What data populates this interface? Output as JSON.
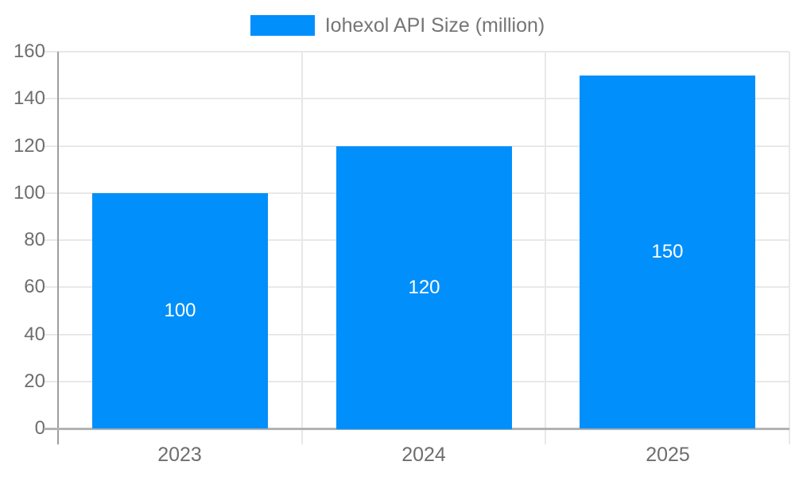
{
  "legend": {
    "label": "Iohexol API Size (million)"
  },
  "colors": {
    "bar": "#008FFB",
    "bar_label": "#FFFFFF",
    "legend_text": "#757575",
    "axis_label": "#6E6E6E",
    "grid": "#E8E8E8",
    "y_axis_line": "#9E9E9E",
    "x_axis_line": "#B3B3B3",
    "background": "#FFFFFF"
  },
  "chart_data": {
    "type": "bar",
    "title": "",
    "xlabel": "",
    "ylabel": "",
    "categories": [
      "2023",
      "2024",
      "2025"
    ],
    "series": [
      {
        "name": "Iohexol API Size (million)",
        "values": [
          100,
          120,
          150
        ],
        "color": "#008FFB"
      }
    ],
    "data_labels": [
      "100",
      "120",
      "150"
    ],
    "data_label_position": "center-inside-bar",
    "ylim": [
      0,
      160
    ],
    "y_ticks": [
      0,
      20,
      40,
      60,
      80,
      100,
      120,
      140,
      160
    ],
    "grid": "horizontal gridlines at every y tick, vertical gridlines at category boundaries",
    "legend_position": "top-center",
    "legend_marker": "rectangle"
  }
}
